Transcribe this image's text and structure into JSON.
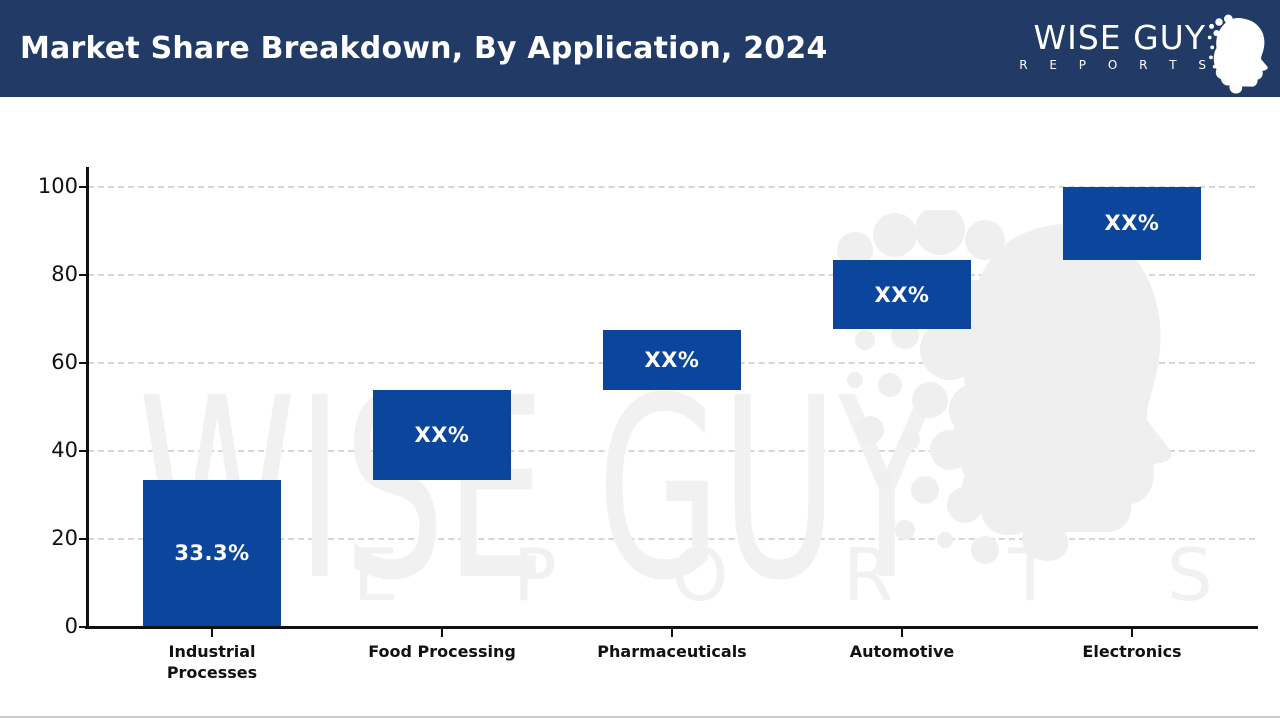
{
  "header": {
    "title": "Market Share Breakdown, By Application, 2024",
    "logo": {
      "wordmark": "WISE GUY",
      "subtext": "R E P O R T S"
    }
  },
  "watermark": {
    "wordmark": "WISE GUY",
    "subtext": "R E P O R T S"
  },
  "chart_data": {
    "type": "waterfall",
    "title": "Market Share Breakdown, By Application, 2024",
    "categories": [
      "Industrial Processes",
      "Food Processing",
      "Pharmaceuticals",
      "Automotive",
      "Electronics"
    ],
    "segments": [
      {
        "category": "Industrial Processes",
        "start": 0,
        "end": 33.3,
        "label": "33.3%"
      },
      {
        "category": "Food Processing",
        "start": 33.3,
        "end": 53.8,
        "label": "XX%"
      },
      {
        "category": "Pharmaceuticals",
        "start": 53.8,
        "end": 67.5,
        "label": "XX%"
      },
      {
        "category": "Automotive",
        "start": 67.5,
        "end": 83.2,
        "label": "XX%"
      },
      {
        "category": "Electronics",
        "start": 83.2,
        "end": 100,
        "label": "XX%"
      }
    ],
    "yticks": [
      0,
      20,
      40,
      60,
      80,
      100
    ],
    "ylim": [
      0,
      104
    ],
    "xlabel": "",
    "ylabel": "",
    "grid": "horizontal-dashed",
    "legend": "none",
    "bar_color": "#0b459c",
    "bar_label_color": "#ffffff"
  },
  "colors": {
    "header_bg": "#213a66",
    "bar": "#0b459c",
    "axis": "#111111",
    "gridline": "#d6d6d6",
    "watermark": "#f1f1f1",
    "bottom_rule": "#c9c9c9"
  }
}
